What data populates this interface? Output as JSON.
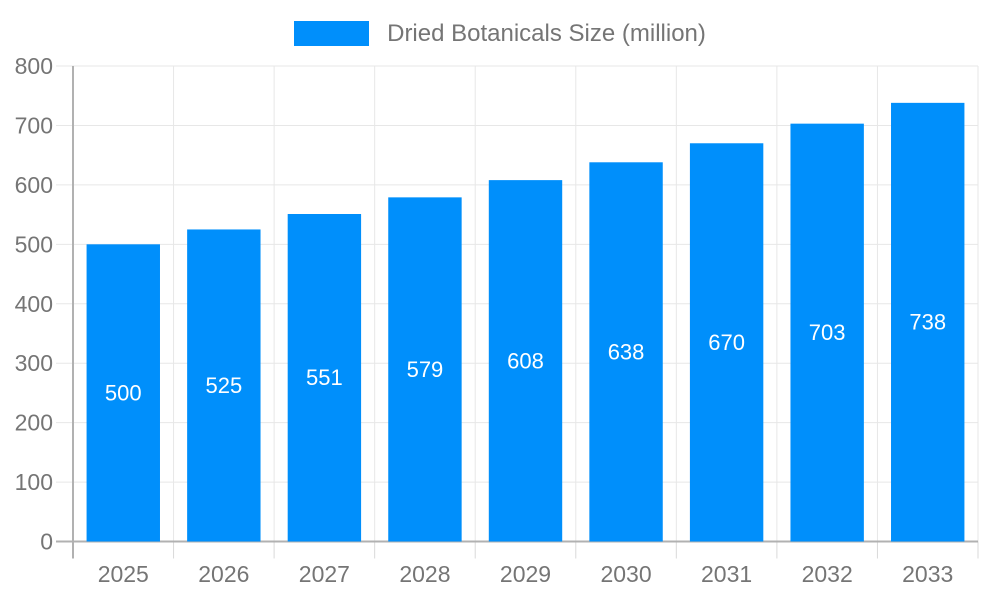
{
  "chart_data": {
    "type": "bar",
    "title": "Dried Botanicals Size (million)",
    "categories": [
      "2025",
      "2026",
      "2027",
      "2028",
      "2029",
      "2030",
      "2031",
      "2032",
      "2033"
    ],
    "series": [
      {
        "name": "Dried Botanicals Size (million)",
        "values": [
          500,
          525,
          551,
          579,
          608,
          638,
          670,
          703,
          738
        ]
      }
    ],
    "xlabel": "",
    "ylabel": "",
    "ylim": [
      0,
      800
    ],
    "ytick_step": 100,
    "ytick_labels": [
      "0",
      "100",
      "200",
      "300",
      "400",
      "500",
      "600",
      "700",
      "800"
    ],
    "grid": true,
    "legend_position": "top",
    "value_labels_inside_bars": true,
    "colors": {
      "bar": "#008FFB",
      "value_label": "#ffffff",
      "axis_line": "#b1b1b1",
      "gridline": "#e7e7e7",
      "tick": "#d9d9d9",
      "tick_label": "#757575",
      "legend_text": "#757575",
      "background": "#ffffff"
    }
  }
}
